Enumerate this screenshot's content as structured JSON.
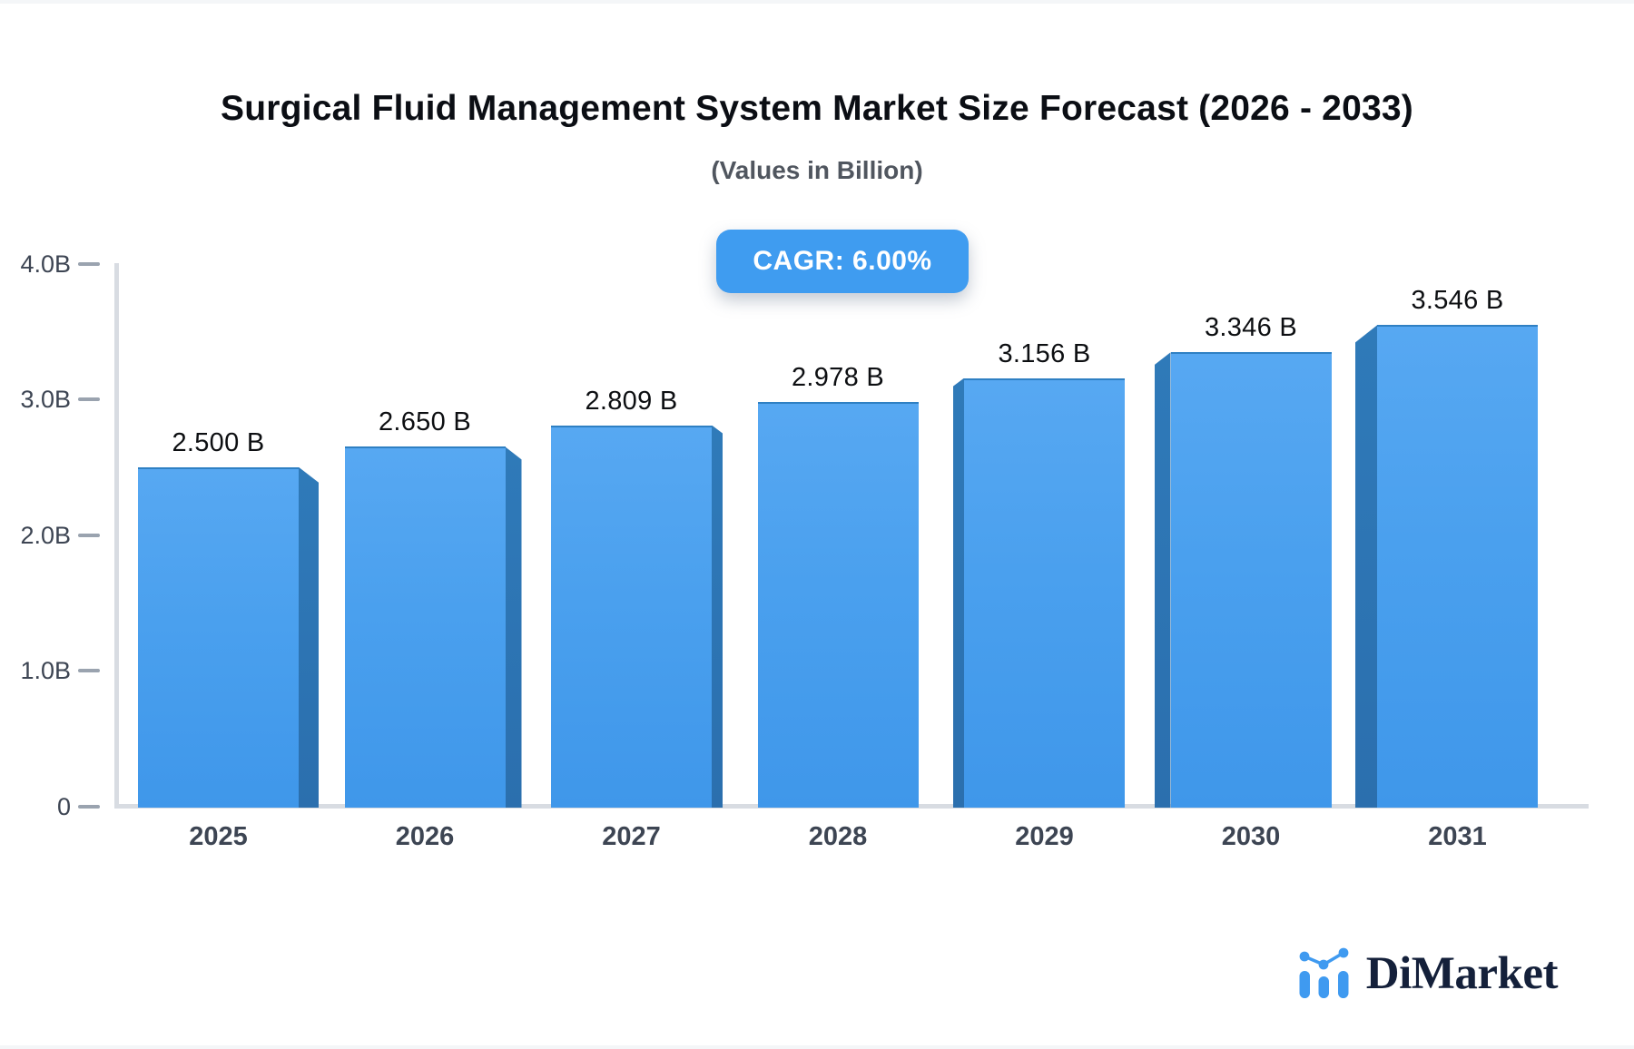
{
  "chart_data": {
    "type": "bar",
    "title": "Surgical Fluid Management System Market Size Forecast (2026 - 2033)",
    "subtitle": "(Values in Billion)",
    "annotation": "CAGR: 6.00%",
    "categories": [
      "2025",
      "2026",
      "2027",
      "2028",
      "2029",
      "2030",
      "2031"
    ],
    "values": [
      2.5,
      2.65,
      2.809,
      2.978,
      3.156,
      3.346,
      3.546
    ],
    "value_labels": [
      "2.500 B",
      "2.650 B",
      "2.809 B",
      "2.978 B",
      "3.156 B",
      "3.346 B",
      "3.546 B"
    ],
    "y_ticks": [
      {
        "label": "0",
        "value": 0
      },
      {
        "label": "1.0B",
        "value": 1
      },
      {
        "label": "2.0B",
        "value": 2
      },
      {
        "label": "3.0B",
        "value": 3
      },
      {
        "label": "4.0B",
        "value": 4
      }
    ],
    "ylim": [
      0,
      4
    ],
    "xlabel": "",
    "ylabel": "",
    "legend": "none",
    "grid": "off",
    "bar_face_color": "#4da2f0",
    "bar_side_color": "#2e76b7",
    "axis_color": "#d8dce2"
  },
  "badge": {
    "background": "#3f9cf0",
    "text_color": "#ffffff"
  },
  "logo": {
    "text": "DiMarket",
    "icon": "bar-line-chart-icon",
    "icon_color": "#3f9af0",
    "text_color": "#14203a"
  }
}
